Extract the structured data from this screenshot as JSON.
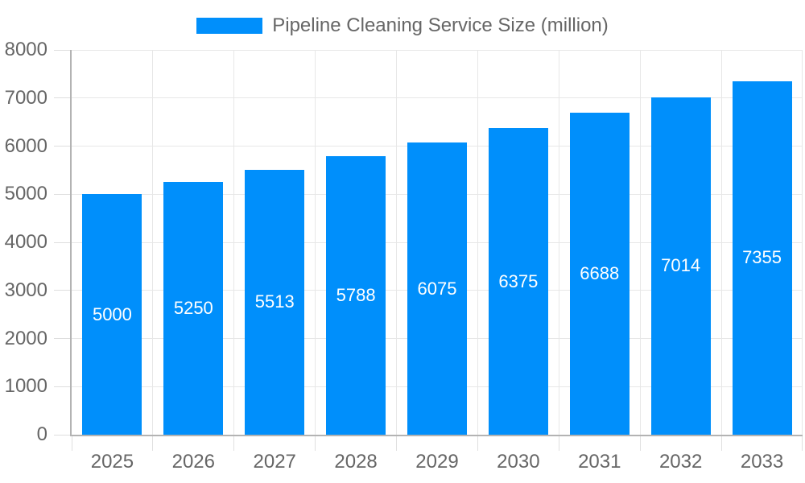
{
  "chart_data": {
    "type": "bar",
    "title": "",
    "legend": {
      "label": "Pipeline Cleaning Service Size (million)",
      "position": "top"
    },
    "categories": [
      "2025",
      "2026",
      "2027",
      "2028",
      "2029",
      "2030",
      "2031",
      "2032",
      "2033"
    ],
    "series": [
      {
        "name": "Pipeline Cleaning Service Size (million)",
        "values": [
          5000,
          5250,
          5513,
          5788,
          6075,
          6375,
          6688,
          7014,
          7355
        ]
      }
    ],
    "xlabel": "",
    "ylabel": "",
    "ylim": [
      0,
      8000
    ],
    "ytick_step": 1000,
    "yticks": [
      0,
      1000,
      2000,
      3000,
      4000,
      5000,
      6000,
      7000,
      8000
    ],
    "grid": "horizontal lines at each y tick, vertical lines at category boundaries",
    "data_label_position": "center of bar",
    "colors": {
      "bar": "#008FFB",
      "grid": "#e7e7e7",
      "axis_border": "#b3b3b3",
      "tick": "#dedede",
      "axis_text": "#666666",
      "bar_label_text": "#ffffff",
      "background": "#ffffff"
    }
  }
}
